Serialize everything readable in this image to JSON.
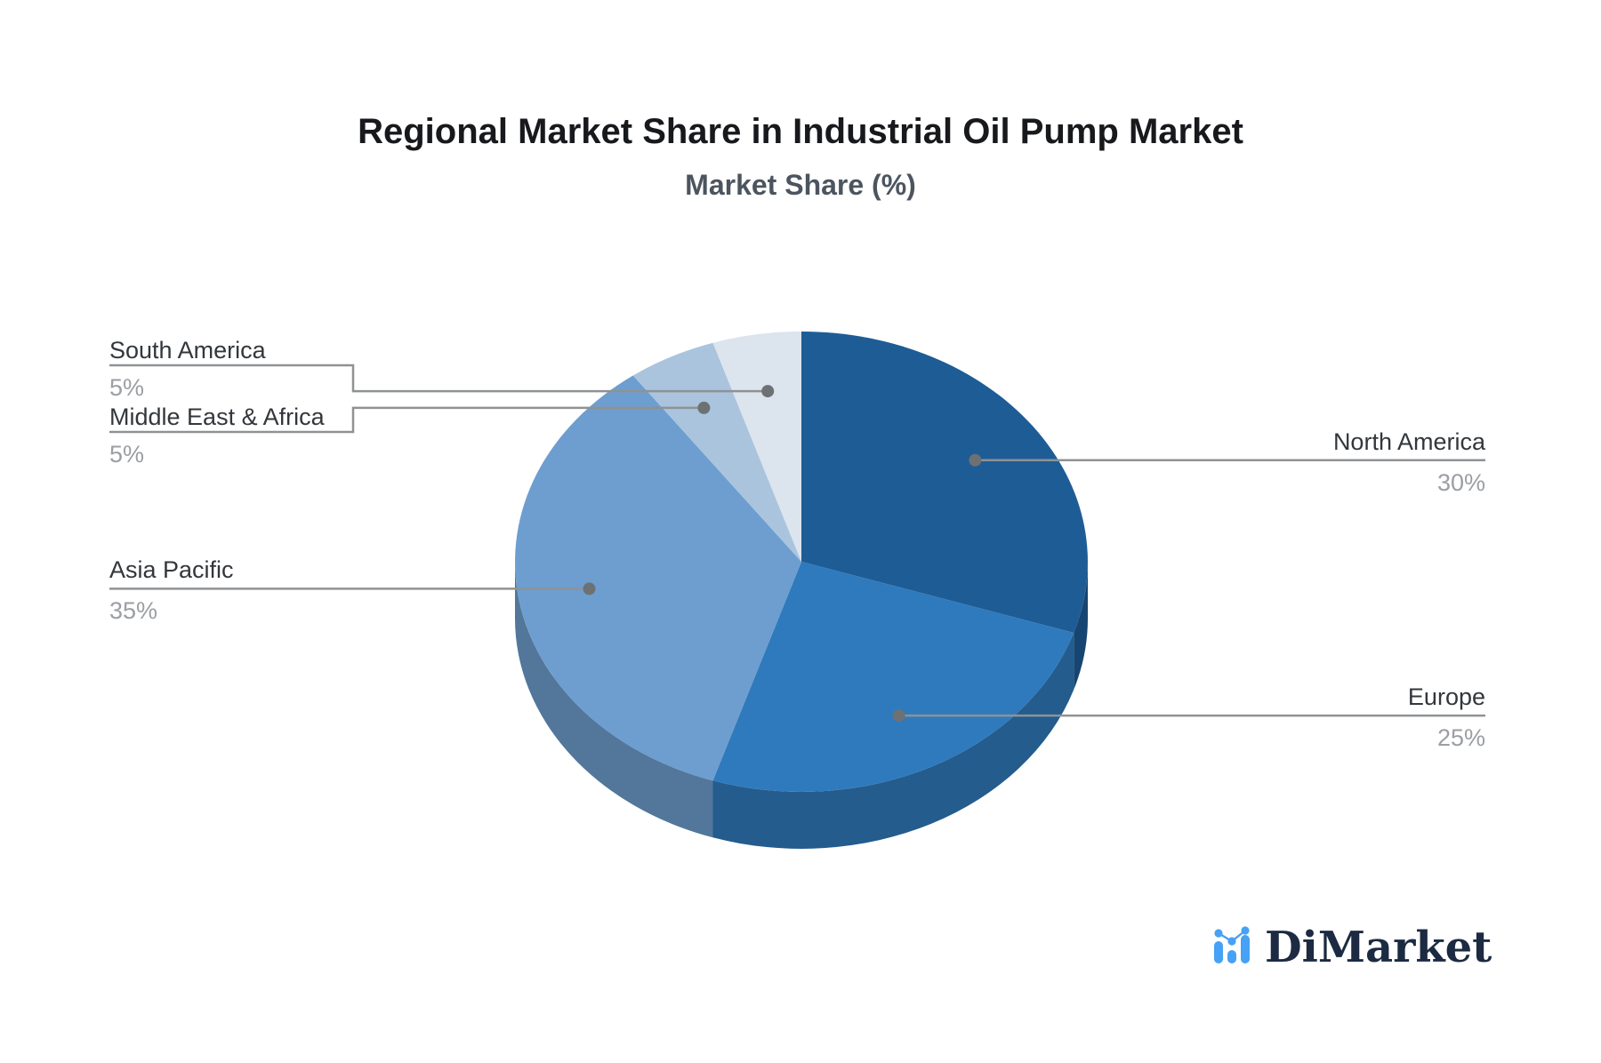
{
  "header": {
    "title": "Regional Market Share in Industrial Oil Pump Market",
    "subtitle": "Market Share (%)"
  },
  "chart_data": {
    "type": "pie",
    "title": "Regional Market Share in Industrial Oil Pump Market",
    "subtitle": "Market Share (%)",
    "unit": "%",
    "style": "3d",
    "direction": "clockwise",
    "start_angle": "top",
    "legend": "none",
    "slices": [
      {
        "label": "North America",
        "value": 30,
        "value_text": "30%",
        "color": "#1e5c96",
        "label_side": "right"
      },
      {
        "label": "Europe",
        "value": 25,
        "value_text": "25%",
        "color": "#2f7abc",
        "label_side": "right"
      },
      {
        "label": "Asia Pacific",
        "value": 35,
        "value_text": "35%",
        "color": "#6d9ecf",
        "label_side": "left"
      },
      {
        "label": "Middle East & Africa",
        "value": 5,
        "value_text": "5%",
        "color": "#aac4de",
        "label_side": "left"
      },
      {
        "label": "South America",
        "value": 5,
        "value_text": "5%",
        "color": "#dce4ee",
        "label_side": "left"
      }
    ]
  },
  "branding": {
    "logo_text": "DiMarket"
  },
  "colors": {
    "background": "#ffffff",
    "title_text": "#17191c",
    "subtitle_text": "#4c555f",
    "label_text": "#33373b",
    "value_text": "#9b9ea2",
    "leader_line": "#8f9294",
    "leader_dot": "#6d7174",
    "logo_icon_blue": "#47a1f5",
    "logo_text_navy": "#1c2a42"
  }
}
